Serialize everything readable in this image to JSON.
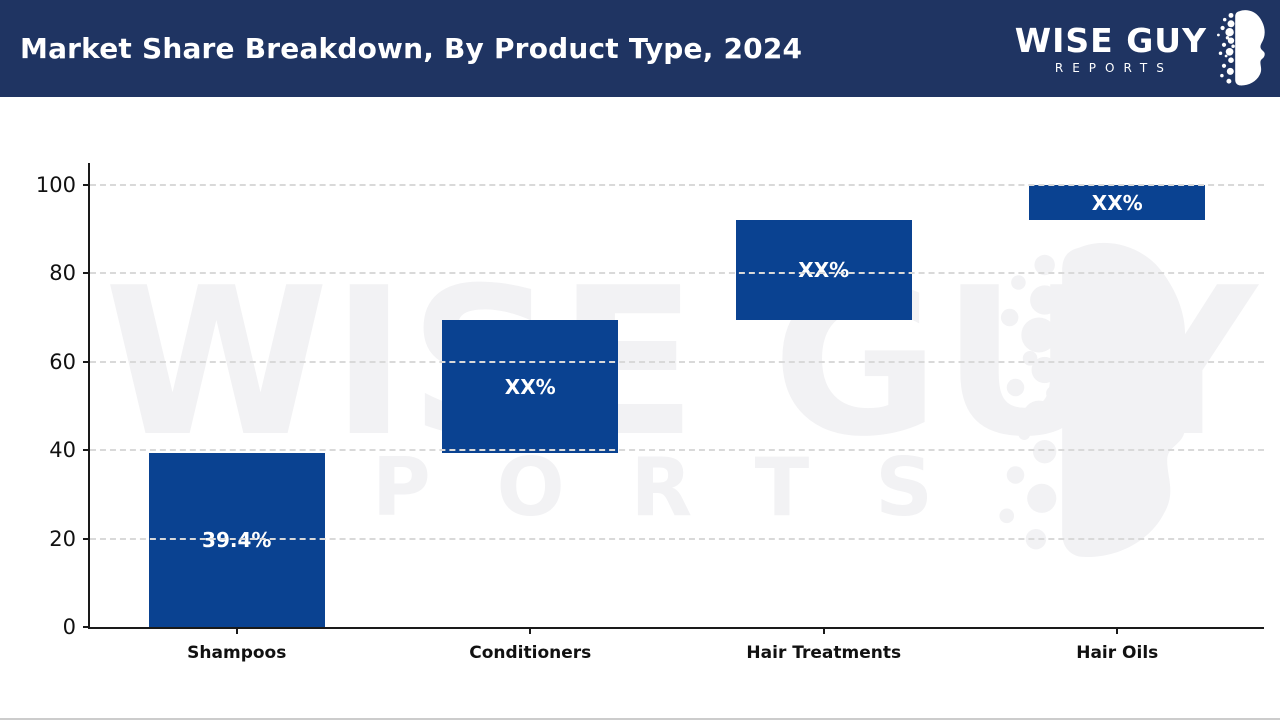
{
  "header": {
    "title": "Market Share Breakdown, By Product Type, 2024",
    "bg_color": "#1f3462",
    "logo": {
      "line1": "WISE GUY",
      "line2": "REPORTS"
    }
  },
  "watermark": {
    "line1": "WISE GUY",
    "line2": "PORTS"
  },
  "chart_data": {
    "type": "bar",
    "variant": "waterfall",
    "title": "Market Share Breakdown, By Product Type, 2024",
    "categories": [
      "Shampoos",
      "Conditioners",
      "Hair Treatments",
      "Hair Oils"
    ],
    "segments": [
      {
        "category": "Shampoos",
        "start": 0,
        "end": 39.4,
        "estimated_value": 39.4,
        "label": "39.4%"
      },
      {
        "category": "Conditioners",
        "start": 39.4,
        "end": 69.4,
        "estimated_value": 30.0,
        "label": "XX%"
      },
      {
        "category": "Hair Treatments",
        "start": 69.4,
        "end": 92.1,
        "estimated_value": 22.7,
        "label": "XX%"
      },
      {
        "category": "Hair Oils",
        "start": 92.1,
        "end": 100.0,
        "estimated_value": 7.9,
        "label": "XX%"
      }
    ],
    "yticks": [
      0,
      20,
      40,
      60,
      80,
      100
    ],
    "ylim": [
      0,
      105
    ],
    "xlabel": "",
    "ylabel": "",
    "bar_color": "#0a4291",
    "label_color": "#ffffff",
    "grid": true,
    "grid_style": "dashed",
    "legend": "none"
  }
}
